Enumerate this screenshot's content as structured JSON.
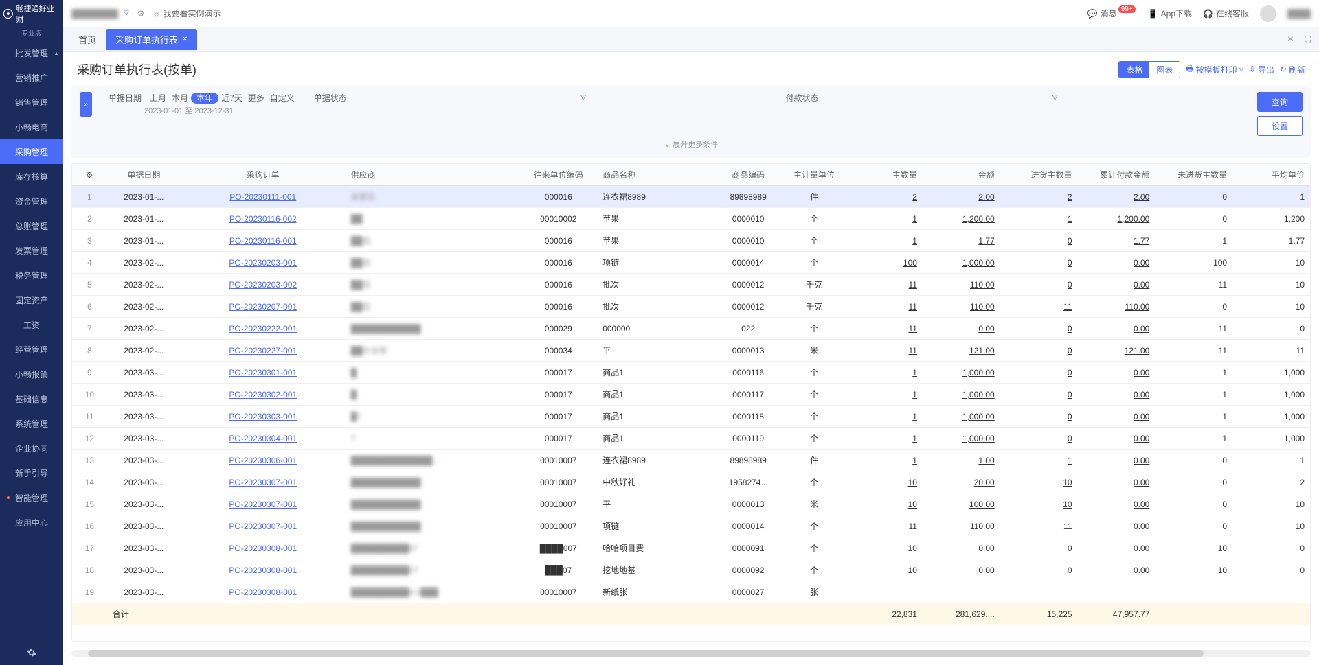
{
  "brand": {
    "name": "畅捷通好业财",
    "edition": "专业版"
  },
  "topbar": {
    "company": "████████",
    "demo_link": "我要看实例演示",
    "msg": "消息",
    "msg_badge": "99+",
    "app": "App下载",
    "cs": "在线客服",
    "user": "████"
  },
  "sidebar": {
    "items": [
      {
        "label": "批发管理",
        "expanded": true
      },
      {
        "label": "营销推广"
      },
      {
        "label": "销售管理"
      },
      {
        "label": "小畅电商"
      },
      {
        "label": "采购管理",
        "active": true
      },
      {
        "label": "库存核算"
      },
      {
        "label": "资金管理"
      },
      {
        "label": "总账管理"
      },
      {
        "label": "发票管理"
      },
      {
        "label": "税务管理"
      },
      {
        "label": "固定资产"
      },
      {
        "label": "工资"
      },
      {
        "label": "经营管理"
      },
      {
        "label": "小畅报销"
      },
      {
        "label": "基础信息"
      },
      {
        "label": "系统管理"
      },
      {
        "label": "企业协同"
      },
      {
        "label": "新手引导"
      },
      {
        "label": "智能管理",
        "dot": true
      },
      {
        "label": "应用中心"
      }
    ]
  },
  "tabs": {
    "home": "首页",
    "active": "采购订单执行表"
  },
  "page": {
    "title": "采购订单执行表(按单)",
    "view_table": "表格",
    "view_chart": "图表",
    "print": "按模板打印",
    "export": "导出",
    "refresh": "刷新"
  },
  "filters": {
    "date_label": "单据日期",
    "opts": [
      "上月",
      "本月",
      "本年",
      "近7天",
      "更多",
      "自定义"
    ],
    "active_opt": 2,
    "range": "2023-01-01 至 2023-12-31",
    "status_label": "单据状态",
    "pay_label": "付款状态",
    "query": "查询",
    "settings": "设置",
    "expand": "展开更多条件"
  },
  "table": {
    "headers": [
      "单据日期",
      "采购订单",
      "供应商",
      "往来单位编码",
      "商品名称",
      "商品编码",
      "主计量单位",
      "主数量",
      "金额",
      "进货主数量",
      "累计付款金额",
      "未进货主数量",
      "平均单价"
    ],
    "rows": [
      {
        "i": 1,
        "date": "2023-01-...",
        "order": "PO-20230111-001",
        "sup": "变更后",
        "code": "000016",
        "pname": "连衣裙8989",
        "pcode": "89898989",
        "unit": "件",
        "qty": "2",
        "amt": "2.00",
        "inqty": "2",
        "paid": "2.00",
        "noqty": "0",
        "avg": "1",
        "sel": true
      },
      {
        "i": 2,
        "date": "2023-01-...",
        "order": "PO-20230116-002",
        "sup": "██",
        "code": "00010002",
        "pname": "苹果",
        "pcode": "0000010",
        "unit": "个",
        "qty": "1",
        "amt": "1,200.00",
        "inqty": "1",
        "paid": "1,200.00",
        "noqty": "0",
        "avg": "1,200"
      },
      {
        "i": 3,
        "date": "2023-01-...",
        "order": "PO-20230116-001",
        "sup": "██后",
        "code": "000016",
        "pname": "苹果",
        "pcode": "0000010",
        "unit": "个",
        "qty": "1",
        "amt": "1.77",
        "inqty": "0",
        "paid": "1.77",
        "noqty": "1",
        "avg": "1.77"
      },
      {
        "i": 4,
        "date": "2023-02-...",
        "order": "PO-20230203-001",
        "sup": "██后",
        "code": "000016",
        "pname": "项链",
        "pcode": "0000014",
        "unit": "个",
        "qty": "100",
        "amt": "1,000.00",
        "inqty": "0",
        "paid": "0.00",
        "noqty": "100",
        "avg": "10"
      },
      {
        "i": 5,
        "date": "2023-02-...",
        "order": "PO-20230203-002",
        "sup": "██后",
        "code": "000016",
        "pname": "批次",
        "pcode": "0000012",
        "unit": "千克",
        "qty": "11",
        "amt": "110.00",
        "inqty": "0",
        "paid": "0.00",
        "noqty": "11",
        "avg": "10"
      },
      {
        "i": 6,
        "date": "2023-02-...",
        "order": "PO-20230207-001",
        "sup": "██后",
        "code": "000016",
        "pname": "批次",
        "pcode": "0000012",
        "unit": "千克",
        "qty": "11",
        "amt": "110.00",
        "inqty": "11",
        "paid": "110.00",
        "noqty": "0",
        "avg": "10"
      },
      {
        "i": 7,
        "date": "2023-02-...",
        "order": "PO-20230222-001",
        "sup": "████████████",
        "code": "000029",
        "pname": "000000",
        "pcode": "022",
        "unit": "个",
        "qty": "11",
        "amt": "0.00",
        "inqty": "0",
        "paid": "0.00",
        "noqty": "11",
        "avg": "0"
      },
      {
        "i": 8,
        "date": "2023-02-...",
        "order": "PO-20230227-001",
        "sup": "██价含税",
        "code": "000034",
        "pname": "平",
        "pcode": "0000013",
        "unit": "米",
        "qty": "11",
        "amt": "121.00",
        "inqty": "0",
        "paid": "121.00",
        "noqty": "11",
        "avg": "11"
      },
      {
        "i": 9,
        "date": "2023-03-...",
        "order": "PO-20230301-001",
        "sup": "█",
        "code": "000017",
        "pname": "商品1",
        "pcode": "0000116",
        "unit": "个",
        "qty": "1",
        "amt": "1,000.00",
        "inqty": "0",
        "paid": "0.00",
        "noqty": "1",
        "avg": "1,000"
      },
      {
        "i": 10,
        "date": "2023-03-...",
        "order": "PO-20230302-001",
        "sup": "█",
        "code": "000017",
        "pname": "商品1",
        "pcode": "0000117",
        "unit": "个",
        "qty": "1",
        "amt": "1,000.00",
        "inqty": "0",
        "paid": "0.00",
        "noqty": "1",
        "avg": "1,000"
      },
      {
        "i": 11,
        "date": "2023-03-...",
        "order": "PO-20230303-001",
        "sup": "█T",
        "code": "000017",
        "pname": "商品1",
        "pcode": "0000118",
        "unit": "个",
        "qty": "1",
        "amt": "1,000.00",
        "inqty": "0",
        "paid": "0.00",
        "noqty": "1",
        "avg": "1,000"
      },
      {
        "i": 12,
        "date": "2023-03-...",
        "order": "PO-20230304-001",
        "sup": "T",
        "code": "000017",
        "pname": "商品1",
        "pcode": "0000119",
        "unit": "个",
        "qty": "1",
        "amt": "1,000.00",
        "inqty": "0",
        "paid": "0.00",
        "noqty": "1",
        "avg": "1,000"
      },
      {
        "i": 13,
        "date": "2023-03-...",
        "order": "PO-20230306-001",
        "sup": "██████████████...",
        "code": "00010007",
        "pname": "连衣裙8989",
        "pcode": "89898989",
        "unit": "件",
        "qty": "1",
        "amt": "1.00",
        "inqty": "1",
        "paid": "0.00",
        "noqty": "0",
        "avg": "1"
      },
      {
        "i": 14,
        "date": "2023-03-...",
        "order": "PO-20230307-001",
        "sup": "████████████",
        "code": "00010007",
        "pname": "中秋好礼",
        "pcode": "1958274...",
        "unit": "个",
        "qty": "10",
        "amt": "20.00",
        "inqty": "10",
        "paid": "0.00",
        "noqty": "0",
        "avg": "2"
      },
      {
        "i": 15,
        "date": "2023-03-...",
        "order": "PO-20230307-001",
        "sup": "████████████",
        "code": "00010007",
        "pname": "平",
        "pcode": "0000013",
        "unit": "米",
        "qty": "10",
        "amt": "100.00",
        "inqty": "10",
        "paid": "0.00",
        "noqty": "0",
        "avg": "10"
      },
      {
        "i": 16,
        "date": "2023-03-...",
        "order": "PO-20230307-001",
        "sup": "████████████",
        "code": "00010007",
        "pname": "项链",
        "pcode": "0000014",
        "unit": "个",
        "qty": "11",
        "amt": "110.00",
        "inqty": "11",
        "paid": "0.00",
        "noqty": "0",
        "avg": "10"
      },
      {
        "i": 17,
        "date": "2023-03-...",
        "order": "PO-20230308-001",
        "sup": "██████████07",
        "code": "████007",
        "pname": "哈哈项目费",
        "pcode": "0000091",
        "unit": "个",
        "qty": "10",
        "amt": "0.00",
        "inqty": "0",
        "paid": "0.00",
        "noqty": "10",
        "avg": "0"
      },
      {
        "i": 18,
        "date": "2023-03-...",
        "order": "PO-20230308-001",
        "sup": "██████████07",
        "code": "███07",
        "pname": "挖地地基",
        "pcode": "0000092",
        "unit": "个",
        "qty": "10",
        "amt": "0.00",
        "inqty": "0",
        "paid": "0.00",
        "noqty": "10",
        "avg": "0"
      },
      {
        "i": 19,
        "date": "2023-03-...",
        "order": "PO-20230308-001",
        "sup": "██████████0.0███",
        "code": "00010007",
        "pname": "新纸张",
        "pcode": "0000027",
        "unit": "张",
        "qty": "",
        "amt": "",
        "inqty": "",
        "paid": "",
        "noqty": "",
        "avg": ""
      }
    ],
    "total": {
      "label": "合计",
      "qty": "22,831",
      "amt": "281,629....",
      "inqty": "15,225",
      "paid": "47,957.77"
    }
  }
}
